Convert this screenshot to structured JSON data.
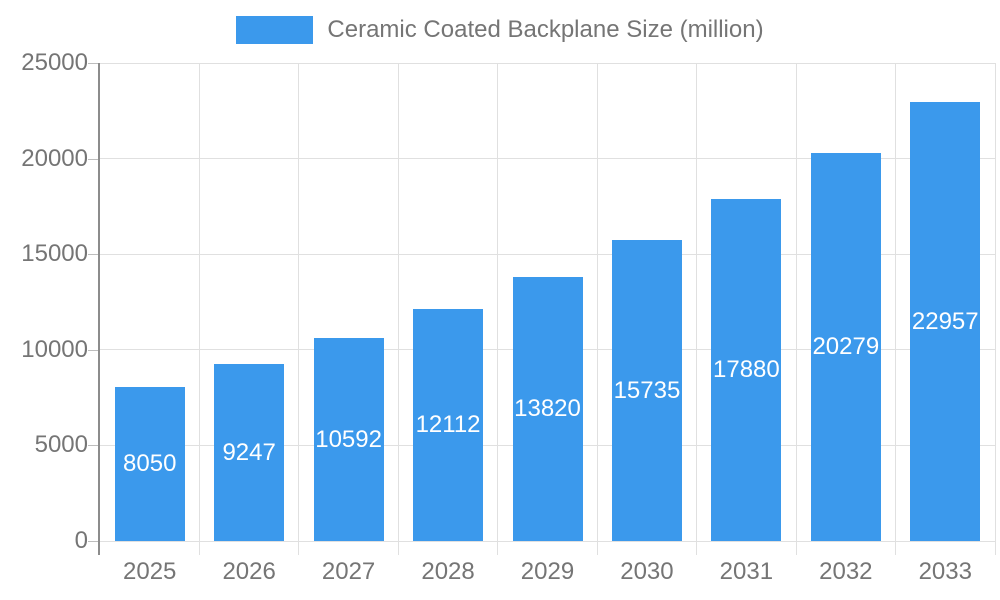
{
  "legend": {
    "label": "Ceramic Coated Backplane Size (million)"
  },
  "colors": {
    "bar": "#3b99ec",
    "bar_label": "#ffffff",
    "grid": "#e0e0e0",
    "axis": "#8c8c8c",
    "text": "#757575",
    "background": "#ffffff"
  },
  "chart_data": {
    "type": "bar",
    "title": "Ceramic Coated Backplane Size (million)",
    "categories": [
      "2025",
      "2026",
      "2027",
      "2028",
      "2029",
      "2030",
      "2031",
      "2032",
      "2033"
    ],
    "values": [
      8050,
      9247,
      10592,
      12112,
      13820,
      15735,
      17880,
      20279,
      22957
    ],
    "series_name": "Ceramic Coated Backplane Size (million)",
    "xlabel": "",
    "ylabel": "",
    "ylim": [
      0,
      25000
    ],
    "ytick_step": 5000,
    "ytick_labels": [
      "0",
      "5000",
      "10000",
      "15000",
      "20000",
      "25000"
    ],
    "grid": true,
    "legend_position": "top",
    "value_labels": "inside-center"
  }
}
